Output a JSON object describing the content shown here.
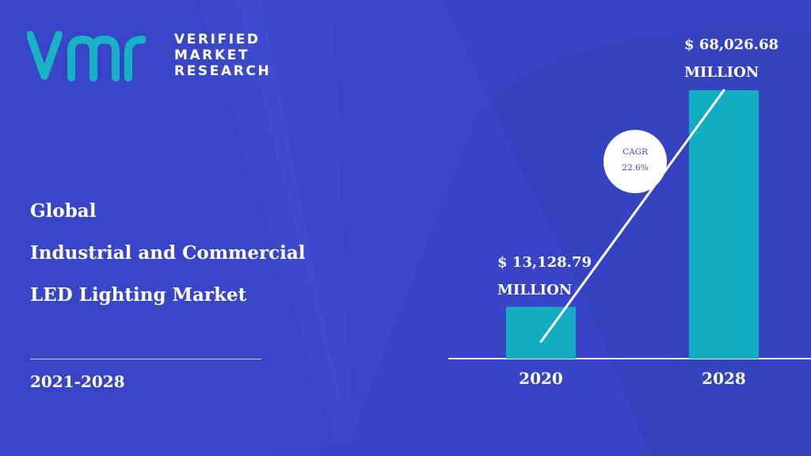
{
  "brand": {
    "logo_lines": [
      "VERIFIED",
      "MARKET",
      "RESEARCH"
    ],
    "mark_text": "vmr"
  },
  "title": {
    "lines": [
      "Global",
      "Industrial and Commercial",
      "LED Lighting Market"
    ],
    "period": "2021-2028"
  },
  "colors": {
    "background": "#3a46c8",
    "bar": "#13adc2",
    "logo": "#17b3c4",
    "text": "#ffffff"
  },
  "chart_data": {
    "type": "bar",
    "categories": [
      "2020",
      "2028"
    ],
    "values": [
      13128.79,
      68026.68
    ],
    "value_labels": [
      [
        "$ 13,128.79",
        "MILLION"
      ],
      [
        "$ 68,026.68",
        "MILLION"
      ]
    ],
    "unit": "MILLION",
    "annotation": {
      "label": "CAGR",
      "value": "22.6%"
    }
  }
}
